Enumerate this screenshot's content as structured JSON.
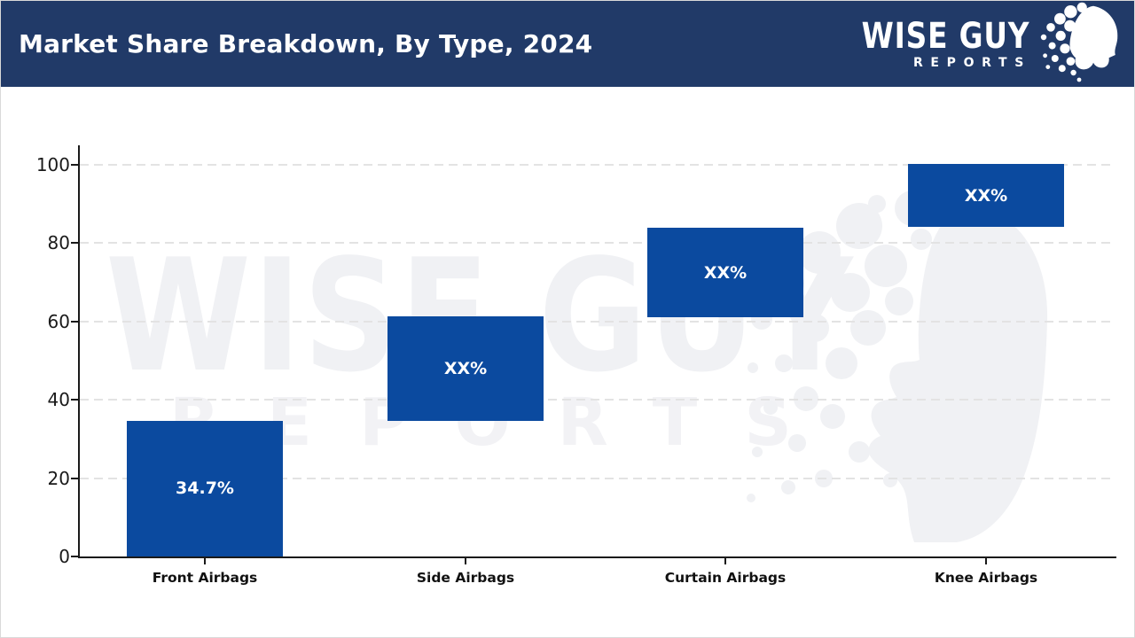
{
  "header": {
    "title": "Market Share Breakdown, By Type, 2024",
    "bg_color": "#213A68",
    "logo": {
      "line1": "WISE GUY",
      "line2": "REPORTS"
    }
  },
  "watermark": {
    "line1": "WISE GUY",
    "line2": "REPORTS"
  },
  "icons": {
    "logo_head": "head-profile-made-of-dots",
    "watermark_head": "head-profile-made-of-dots"
  },
  "chart_data": {
    "type": "bar",
    "subtype": "waterfall",
    "title": "Market Share Breakdown, By Type, 2024",
    "categories": [
      "Front Airbags",
      "Side Airbags",
      "Curtain Airbags",
      "Knee Airbags"
    ],
    "segments": [
      {
        "category": "Front Airbags",
        "start": 0,
        "end": 34.7,
        "label": "34.7%"
      },
      {
        "category": "Side Airbags",
        "start": 34.7,
        "end": 61.2,
        "label": "XX%"
      },
      {
        "category": "Curtain Airbags",
        "start": 61.0,
        "end": 83.9,
        "label": "XX%"
      },
      {
        "category": "Knee Airbags",
        "start": 84.1,
        "end": 100.2,
        "label": "XX%"
      }
    ],
    "xlabel": "",
    "ylabel": "",
    "yticks": [
      0,
      20,
      40,
      60,
      80,
      100
    ],
    "ylim": [
      0,
      105
    ],
    "grid": "horizontal-dashed",
    "legend": "none",
    "bar_color": "#0B4A9F",
    "value_label_color": "#FFFFFF",
    "axis_color": "#1a1a1a",
    "grid_color": "#e3e3e3"
  }
}
